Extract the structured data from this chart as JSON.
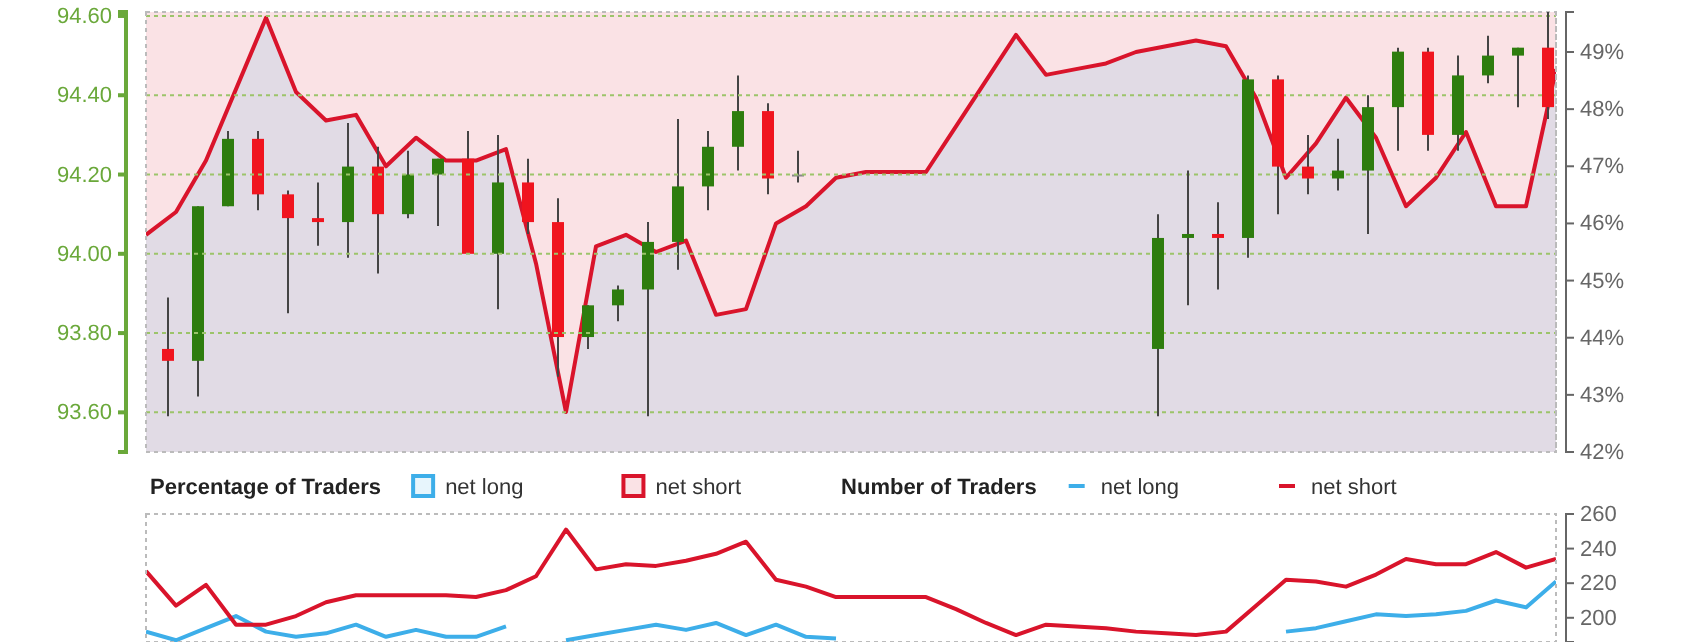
{
  "chart_data": [
    {
      "type": "candlestick",
      "grid": "y",
      "tick_labels": "y",
      "categories": [
        null,
        null,
        null,
        null,
        null,
        null,
        null,
        null,
        null,
        null,
        null,
        null,
        null,
        null,
        null,
        null,
        null,
        null,
        null,
        null,
        null,
        null
      ],
      "ylim": [
        93.5,
        94.61
      ],
      "yticks": [
        {
          "value": 93.6,
          "label": "93.60"
        },
        {
          "value": 93.8,
          "label": "93.80"
        },
        {
          "value": 94,
          "label": "94.00"
        },
        {
          "value": 94.2,
          "label": "94.20"
        },
        {
          "value": 94.4,
          "label": "94.40"
        },
        {
          "value": 94.6,
          "label": "94.60"
        }
      ],
      "ohlc": [
        [
          93.76,
          93.89,
          93.59,
          93.73
        ],
        [
          93.73,
          94.12,
          93.64,
          94.12
        ],
        [
          94.12,
          94.31,
          94.12,
          94.29
        ],
        [
          94.29,
          94.31,
          94.11,
          94.15
        ],
        [
          94.15,
          94.16,
          93.85,
          94.09
        ],
        [
          94.09,
          94.18,
          94.02,
          94.08
        ],
        [
          94.08,
          94.33,
          93.99,
          94.22
        ],
        [
          94.22,
          94.27,
          93.95,
          94.1
        ],
        [
          94.1,
          94.26,
          94.09,
          94.2
        ],
        [
          94.2,
          94.24,
          94.07,
          94.24
        ],
        [
          94.24,
          94.31,
          94.0,
          94.0
        ],
        [
          94.0,
          94.3,
          93.86,
          94.18
        ],
        [
          94.18,
          94.24,
          94.05,
          94.08
        ],
        [
          94.08,
          94.14,
          93.69,
          93.79
        ],
        [
          93.79,
          93.87,
          93.76,
          93.87
        ],
        [
          93.87,
          93.92,
          93.83,
          93.91
        ],
        [
          93.91,
          94.08,
          93.59,
          94.03
        ],
        [
          94.03,
          94.34,
          93.96,
          94.17
        ],
        [
          94.17,
          94.31,
          94.11,
          94.27
        ],
        [
          94.27,
          94.45,
          94.21,
          94.36
        ],
        [
          94.36,
          94.38,
          94.15,
          94.19
        ],
        [
          94.2,
          94.26,
          94.18,
          94.2
        ]
      ],
      "colors": [
        "#f0141e",
        "#2e7d0e",
        "#2e7d0e",
        "#f0141e",
        "#f0141e",
        "#f0141e",
        "#2e7d0e",
        "#f0141e",
        "#2e7d0e",
        "#2e7d0e",
        "#f0141e",
        "#2e7d0e",
        "#f0141e",
        "#f0141e",
        "#2e7d0e",
        "#2e7d0e",
        "#2e7d0e",
        "#2e7d0e",
        "#2e7d0e",
        "#2e7d0e",
        "#f0141e",
        "#888888"
      ]
    },
    {
      "type": "candlestick",
      "tick_labels": false,
      "categories": [
        null,
        null,
        null,
        null,
        null,
        null,
        null,
        null,
        null,
        null,
        null,
        null,
        null,
        null
      ],
      "ylim": [
        93.5,
        94.61
      ],
      "ohlc": [
        [
          93.76,
          94.1,
          93.59,
          94.04
        ],
        [
          94.04,
          94.21,
          93.87,
          94.05
        ],
        [
          94.05,
          94.13,
          93.91,
          94.04
        ],
        [
          94.04,
          94.45,
          93.99,
          94.44
        ],
        [
          94.44,
          94.45,
          94.1,
          94.22
        ],
        [
          94.22,
          94.3,
          94.15,
          94.19
        ],
        [
          94.19,
          94.29,
          94.16,
          94.21
        ],
        [
          94.21,
          94.4,
          94.05,
          94.37
        ],
        [
          94.37,
          94.52,
          94.26,
          94.51
        ],
        [
          94.51,
          94.52,
          94.26,
          94.3
        ],
        [
          94.3,
          94.5,
          94.26,
          94.45
        ],
        [
          94.45,
          94.55,
          94.43,
          94.5
        ],
        [
          94.5,
          94.52,
          94.37,
          94.52
        ],
        [
          94.52,
          94.61,
          94.34,
          94.37
        ]
      ],
      "colors": [
        "#2e7d0e",
        "#2e7d0e",
        "#f0141e",
        "#2e7d0e",
        "#f0141e",
        "#f0141e",
        "#2e7d0e",
        "#2e7d0e",
        "#2e7d0e",
        "#f0141e",
        "#2e7d0e",
        "#2e7d0e",
        "#2e7d0e",
        "#f0141e"
      ]
    },
    {
      "type": "area",
      "legend_title": "Percentage of Traders",
      "legend": "bottom",
      "tick_labels": "y",
      "categories": [
        null,
        null,
        null,
        null,
        null,
        null,
        null,
        null,
        null,
        null,
        null,
        null,
        null,
        null,
        null,
        null,
        null,
        null,
        null,
        null,
        null,
        null,
        null,
        null,
        null,
        null,
        null,
        null,
        null,
        null,
        null,
        null,
        null,
        null,
        null,
        null,
        null,
        null,
        null,
        null,
        null,
        null,
        null,
        null,
        null,
        null,
        null,
        null
      ],
      "ylim": [
        42,
        49.7
      ],
      "yticks": [
        {
          "value": 42,
          "label": "42%"
        },
        {
          "value": 43,
          "label": "43%"
        },
        {
          "value": 44,
          "label": "44%"
        },
        {
          "value": 45,
          "label": "45%"
        },
        {
          "value": 46,
          "label": "46%"
        },
        {
          "value": 47,
          "label": "47%"
        },
        {
          "value": 48,
          "label": "48%"
        },
        {
          "value": 49,
          "label": "49%"
        }
      ],
      "bands": [
        {
          "axis": "y",
          "from": 42,
          "to": 49.7,
          "label": "net short",
          "color": "#d9142b"
        }
      ],
      "series": [
        {
          "name": "net long",
          "type": "area",
          "color": "#3daee9",
          "values": [
            45.8,
            46.2,
            47.1,
            null,
            49.6,
            48.3,
            47.8,
            47.9,
            47.0,
            47.5,
            47.1,
            47.1,
            47.3,
            45.3,
            42.7,
            45.6,
            45.8,
            45.5,
            45.7,
            44.4,
            44.5,
            46.0,
            46.3,
            46.8,
            46.9,
            46.9,
            46.9,
            47.7,
            48.5,
            49.3,
            48.6,
            48.7,
            48.8,
            49.0,
            49.1,
            49.2,
            49.1,
            48.2,
            46.8,
            47.4,
            48.2,
            47.5,
            46.3,
            46.8,
            47.6,
            46.3,
            46.3,
            48.7
          ]
        },
        {
          "type": "line",
          "color": "#d9142b",
          "values": [
            45.8,
            46.2,
            47.1,
            null,
            49.6,
            48.3,
            47.8,
            47.9,
            47.0,
            47.5,
            47.1,
            47.1,
            47.3,
            45.3,
            42.7,
            45.6,
            45.8,
            45.5,
            45.7,
            44.4,
            44.5,
            46.0,
            46.3,
            46.8,
            46.9,
            46.9,
            46.9,
            47.7,
            48.5,
            49.3,
            48.6,
            48.7,
            48.8,
            49.0,
            49.1,
            49.2,
            49.1,
            48.2,
            46.8,
            47.4,
            48.2,
            47.5,
            46.3,
            46.8,
            47.6,
            46.3,
            46.3,
            48.7
          ]
        }
      ]
    },
    {
      "type": "line",
      "legend_title": "Number of Traders",
      "legend": "top",
      "tick_labels": "y",
      "categories": [
        null,
        null,
        null,
        null,
        null,
        null,
        null,
        null,
        null,
        null,
        null,
        null,
        null,
        null,
        null,
        null,
        null,
        null,
        null,
        null,
        null,
        null,
        null,
        null,
        null,
        null,
        null,
        null,
        null,
        null,
        null,
        null,
        null,
        null,
        null,
        null,
        null,
        null,
        null,
        null,
        null,
        null,
        null,
        null,
        null,
        null,
        null,
        null
      ],
      "ylim": [
        186,
        260
      ],
      "yticks": [
        200,
        220,
        240,
        260
      ],
      "series": [
        {
          "name": "net long",
          "color": "#3daee9",
          "values": [
            192,
            187,
            194,
            201,
            192,
            189,
            191,
            196,
            189,
            193,
            189,
            189,
            195,
            null,
            187,
            190,
            193,
            196,
            193,
            197,
            190,
            196,
            189,
            188,
            null,
            null,
            null,
            null,
            null,
            null,
            null,
            null,
            null,
            null,
            null,
            null,
            null,
            null,
            192,
            194,
            198,
            202,
            201,
            202,
            204,
            210,
            206,
            221
          ]
        },
        {
          "name": "net short",
          "color": "#d9142b",
          "values": [
            227,
            207,
            219,
            196,
            196,
            201,
            209,
            213,
            213,
            213,
            213,
            212,
            216,
            224,
            251,
            228,
            231,
            230,
            233,
            237,
            244,
            222,
            218,
            212,
            212,
            212,
            212,
            205,
            197,
            190,
            196,
            195,
            194,
            192,
            191,
            190,
            192,
            207,
            222,
            221,
            218,
            225,
            234,
            231,
            231,
            238,
            229,
            234
          ]
        }
      ]
    }
  ]
}
